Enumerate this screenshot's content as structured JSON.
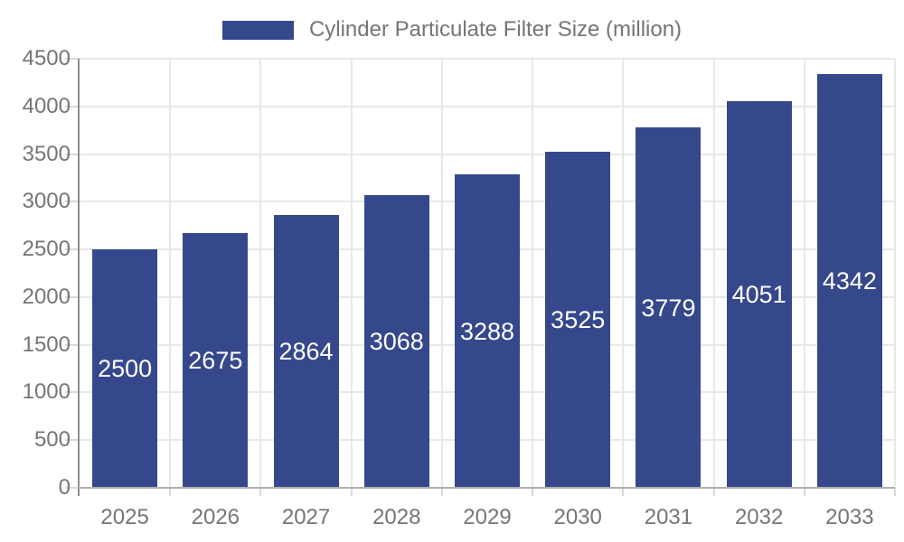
{
  "chart_data": {
    "type": "bar",
    "title": "Cylinder Particulate Filter Size (million)",
    "categories": [
      "2025",
      "2026",
      "2027",
      "2028",
      "2029",
      "2030",
      "2031",
      "2032",
      "2033"
    ],
    "values": [
      2500,
      2675,
      2864,
      3068,
      3288,
      3525,
      3779,
      4051,
      4342
    ],
    "xlabel": "",
    "ylabel": "",
    "ylim": [
      0,
      4500
    ],
    "y_ticks": [
      0,
      500,
      1000,
      1500,
      2000,
      2500,
      3000,
      3500,
      4000,
      4500
    ],
    "grid": "horizontal and vertical light gridlines",
    "legend_position": "top-center",
    "value_label_position": "inside-center"
  },
  "colors": {
    "bar": "#36488C",
    "value_label": "#FFFFFF",
    "legend_text": "#757575",
    "axis_label": "#757575",
    "gridline": "#E8E8E8",
    "tick": "#D9D9D9",
    "y_axis_line": "#8F8F8F",
    "x_axis_line": "#B0B0B0",
    "background": "#FFFFFF"
  }
}
